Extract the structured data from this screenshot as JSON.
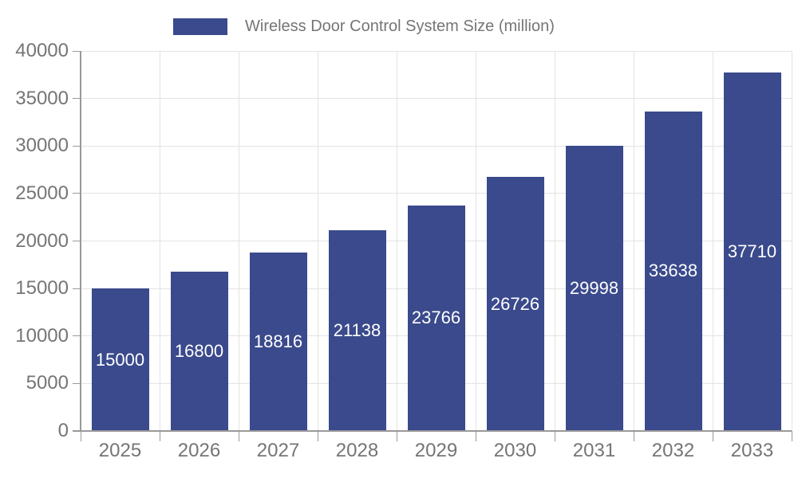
{
  "chart_data": {
    "type": "bar",
    "title": "",
    "legend_label": "Wireless Door Control System Size (million)",
    "legend_position": "top-left",
    "xlabel": "",
    "ylabel": "",
    "categories": [
      "2025",
      "2026",
      "2027",
      "2028",
      "2029",
      "2030",
      "2031",
      "2032",
      "2033"
    ],
    "series": [
      {
        "name": "Wireless Door Control System Size (million)",
        "values": [
          15000,
          16800,
          18816,
          21138,
          23766,
          26726,
          29998,
          33638,
          37710
        ]
      }
    ],
    "value_labels": [
      "15000",
      "16800",
      "18816",
      "21138",
      "23766",
      "26726",
      "29998",
      "33638",
      "37710"
    ],
    "ylim": [
      0,
      40000
    ],
    "yticks": [
      0,
      5000,
      10000,
      15000,
      20000,
      25000,
      30000,
      35000,
      40000
    ],
    "grid": true,
    "colors": {
      "bar": "#3A4A8C",
      "value_label": "#ffffff",
      "tick_label": "#757575",
      "legend_label": "#757575",
      "grid": "#e3e3e3",
      "axis": "#999999",
      "background": "#ffffff"
    }
  }
}
